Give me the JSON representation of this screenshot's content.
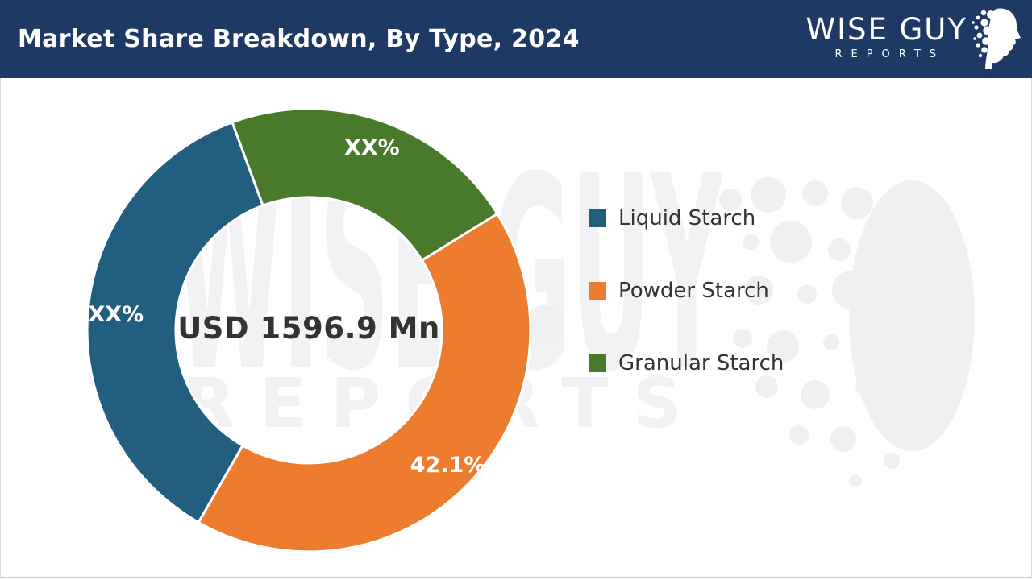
{
  "header": {
    "title": "Market Share Breakdown, By Type, 2024",
    "background_color": "#1e3a64"
  },
  "logo": {
    "line1": "WISE GUY",
    "line2": "REPORTS",
    "icon": "wiseguy-face-icon"
  },
  "watermark": {
    "line1": "WISE GUY",
    "line2": "REPORTS"
  },
  "chart_data": {
    "type": "donut",
    "title": "Market Share Breakdown, By Type, 2024",
    "center_label": "USD 1596.9 Mn",
    "start_angle_deg": -20.2,
    "inner_radius_ratio": 0.6,
    "legend_position": "right",
    "segments": [
      {
        "name": "Granular Starch",
        "value_pct": 21.8,
        "label": "XX%",
        "color": "#497a2b"
      },
      {
        "name": "Powder Starch",
        "value_pct": 42.1,
        "label": "42.1%",
        "color": "#ee7c2f"
      },
      {
        "name": "Liquid Starch",
        "value_pct": 36.1,
        "label": "XX%",
        "color": "#215e7f"
      }
    ]
  },
  "legend": {
    "items": [
      {
        "label": "Liquid Starch",
        "color": "#215e7f"
      },
      {
        "label": "Powder Starch",
        "color": "#ee7c2f"
      },
      {
        "label": "Granular Starch",
        "color": "#497a2b"
      }
    ]
  }
}
